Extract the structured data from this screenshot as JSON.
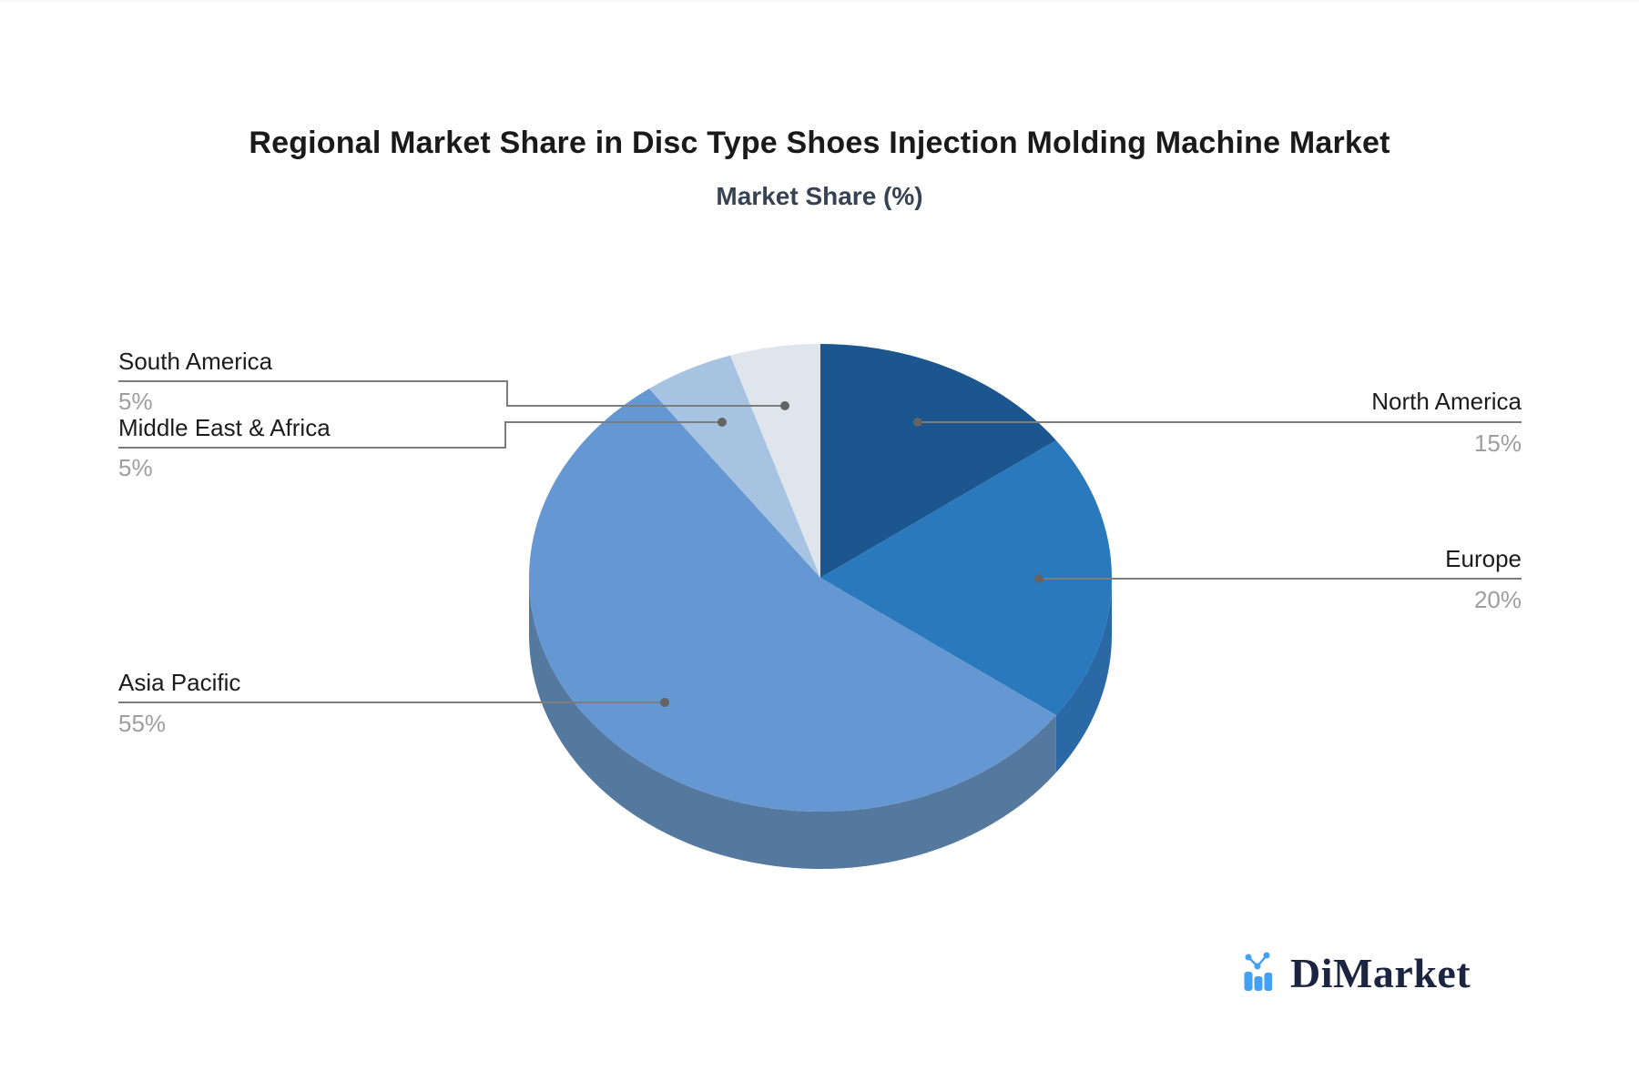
{
  "title": "Regional Market Share in Disc Type Shoes Injection Molding Machine Market",
  "subtitle": "Market Share (%)",
  "chart_data": {
    "type": "pie",
    "projection": "3d",
    "title": "Regional Market Share in Disc Type Shoes Injection Molding Machine Market",
    "subtitle": "Market Share (%)",
    "unit": "%",
    "start_angle_deg": 0,
    "direction": "clockwise",
    "legend_position": "callout-labels",
    "slices": [
      {
        "label": "North America",
        "value": 15,
        "display": "15%",
        "color": "#1b578e"
      },
      {
        "label": "Europe",
        "value": 20,
        "display": "20%",
        "color": "#2b79bd",
        "side_color": "#2a69a6"
      },
      {
        "label": "Asia Pacific",
        "value": 55,
        "display": "55%",
        "color": "#6598d2",
        "side_color": "#55789e"
      },
      {
        "label": "Middle East & Africa",
        "value": 5,
        "display": "5%",
        "color": "#a7c3e2"
      },
      {
        "label": "South America",
        "value": 5,
        "display": "5%",
        "color": "#dfe5ed"
      }
    ],
    "leader_line_color": "#7d7d7d",
    "leader_dot_color": "#646464"
  },
  "logo": {
    "name": "DiMarket",
    "icon": "bar-chart-icon",
    "bar_color": "#42a0f5",
    "text_color": "#1b2440"
  }
}
